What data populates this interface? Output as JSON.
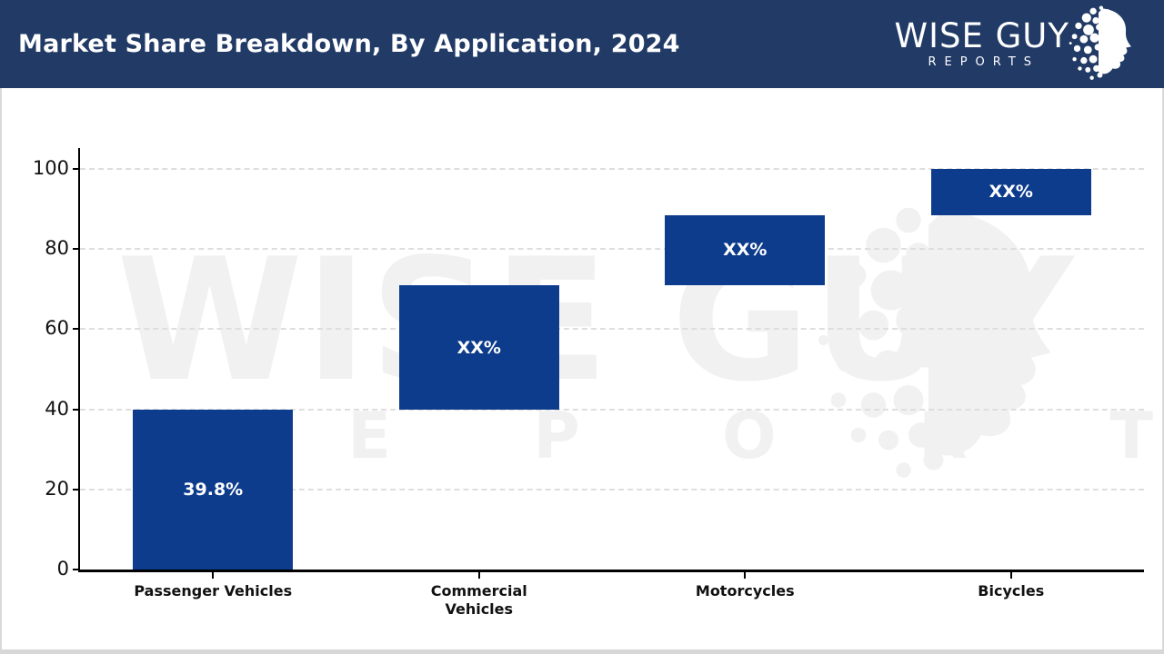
{
  "header": {
    "title": "Market Share Breakdown, By Application, 2024",
    "logo": {
      "line1": "WISE GUY",
      "line2": "REPORTS"
    }
  },
  "watermark": {
    "line1": "WISE GUY",
    "line2": "REPORTS"
  },
  "colors": {
    "header_bg": "#213a66",
    "bar_blue": "#0d3c8c",
    "watermark_gray": "#f1f1f1",
    "grid_gray": "#dedede"
  },
  "chart_data": {
    "type": "bar",
    "subtype": "waterfall",
    "title": "Market Share Breakdown, By Application, 2024",
    "categories": [
      "Passenger Vehicles",
      "Commercial Vehicles",
      "Motorcycles",
      "Bicycles"
    ],
    "category_lines": [
      [
        "Passenger Vehicles"
      ],
      [
        "Commercial",
        "Vehicles"
      ],
      [
        "Motorcycles"
      ],
      [
        "Bicycles"
      ]
    ],
    "values": [
      39.8,
      31.2,
      17.5,
      11.5
    ],
    "segment_start": [
      0,
      39.8,
      71.0,
      88.5
    ],
    "segment_end": [
      39.8,
      71.0,
      88.5,
      100
    ],
    "bar_labels": [
      "39.8%",
      "XX%",
      "XX%",
      "XX%"
    ],
    "ylim": [
      0,
      100
    ],
    "yticks": [
      0,
      20,
      40,
      60,
      80,
      100
    ],
    "xlabel": "",
    "ylabel": "",
    "grid": "horizontal-dashed",
    "legend": "none",
    "bar_color": "#0d3c8c"
  }
}
